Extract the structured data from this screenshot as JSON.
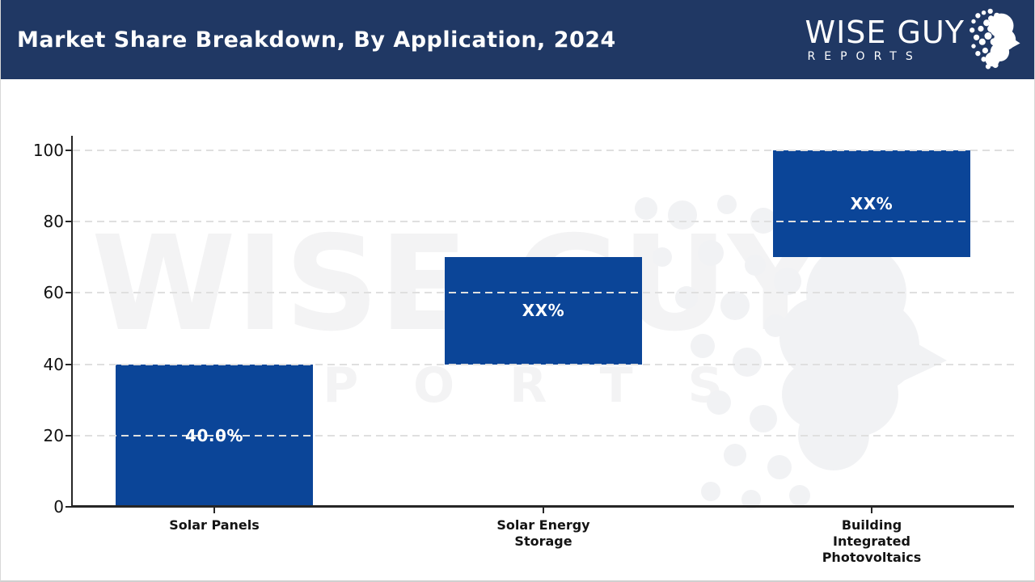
{
  "header": {
    "title": "Market Share Breakdown, By Application, 2024",
    "logo": {
      "name": "WISE GUY",
      "sub": "REPORTS"
    }
  },
  "watermark": {
    "name": "WISE GUY",
    "sub": "REPORTS"
  },
  "colors": {
    "header_bg": "#203864",
    "bar": "#0b4598",
    "grid": "#dfdfdf",
    "axis": "#262626",
    "bar_label": "#ffffff",
    "watermark": "#f3f3f4"
  },
  "chart_data": {
    "type": "bar",
    "subtype": "waterfall",
    "title": "Market Share Breakdown, By Application, 2024",
    "categories": [
      "Solar Panels",
      "Solar Energy\nStorage",
      "Building\nIntegrated\nPhotovoltaics"
    ],
    "series": [
      {
        "name": "Market share (%)",
        "segments": [
          {
            "category": "Solar Panels",
            "start": 0,
            "end": 40,
            "label": "40.0%"
          },
          {
            "category": "Solar Energy Storage",
            "start": 40,
            "end": 70,
            "label": "XX%"
          },
          {
            "category": "Building Integrated Photovoltaics",
            "start": 70,
            "end": 100,
            "label": "XX%"
          }
        ]
      }
    ],
    "ylim": [
      0,
      100
    ],
    "yticks": [
      0,
      20,
      40,
      60,
      80,
      100
    ],
    "xlabel": "",
    "ylabel": "",
    "grid": "horizontal-dashed",
    "legend": "none",
    "bar_color": "#0b4598",
    "bar_label_color": "#ffffff"
  }
}
